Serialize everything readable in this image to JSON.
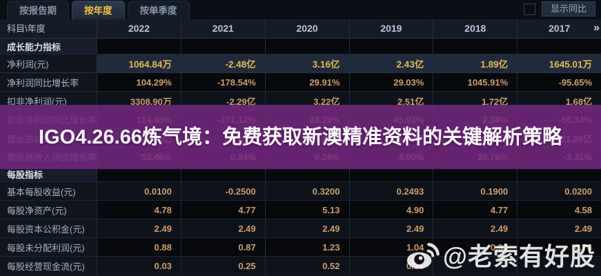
{
  "tabs": [
    {
      "label": "按报告期",
      "active": false
    },
    {
      "label": "按年度",
      "active": true
    },
    {
      "label": "按单季度",
      "active": false
    }
  ],
  "toolbar": {
    "yoy_label": "显示同比",
    "yoy_checked": false
  },
  "table": {
    "corner_label": "科目\\年度",
    "years": [
      "2022",
      "2021",
      "2020",
      "2019",
      "2018",
      "2017"
    ],
    "more_icon": "»",
    "rows": [
      {
        "type": "section",
        "label": "成长能力指标"
      },
      {
        "type": "data",
        "label": "净利润(元)",
        "highlight": true,
        "values": [
          "1064.84万",
          "-2.48亿",
          "3.16亿",
          "2.43亿",
          "1.89亿",
          "1645.01万"
        ]
      },
      {
        "type": "data",
        "label": "净利润同比增长率",
        "values": [
          "104.29%",
          "-178.54%",
          "29.91%",
          "29.03%",
          "1045.91%",
          "-95.65%"
        ]
      },
      {
        "type": "data",
        "label": "扣非净利润(元)",
        "values": [
          "3308.90万",
          "-2.29亿",
          "3.22亿",
          "2.51亿",
          "1.72亿",
          "1.68亿"
        ]
      },
      {
        "type": "data",
        "label": "扣非净利润同比增长率",
        "values": [
          "114.45%",
          "-171.12%",
          "28.29%",
          "45.93%",
          "2.38%",
          "-56.34%"
        ]
      },
      {
        "type": "data",
        "label": "营业总收入(元)",
        "values": [
          "41.43亿",
          "27.00亿",
          "26.77亿",
          "26.70亿",
          "25.68亿",
          "21.26亿"
        ]
      },
      {
        "type": "data",
        "label": "营业总收入同比增长率",
        "values": [
          "53.46%",
          "0.84%",
          "0.26%",
          "4.00%",
          "20.76%",
          "-2.31%"
        ]
      },
      {
        "type": "section",
        "label": "每股指标"
      },
      {
        "type": "data",
        "label": "基本每股收益(元)",
        "values": [
          "0.0100",
          "-0.2500",
          "0.3200",
          "0.2493",
          "0.1900",
          "0.0200"
        ]
      },
      {
        "type": "data",
        "label": "每股净资产(元)",
        "values": [
          "4.78",
          "4.77",
          "5.13",
          "4.90",
          "4.77",
          "4.58"
        ]
      },
      {
        "type": "data",
        "label": "每股资本公积金(元)",
        "values": [
          "2.49",
          "2.49",
          "2.49",
          "2.49",
          "2.49",
          "2.49"
        ]
      },
      {
        "type": "data",
        "label": "每股未分配利润(元)",
        "values": [
          "0.88",
          "0.87",
          "1.23",
          "1.04",
          "0.93",
          "0.76"
        ]
      },
      {
        "type": "data",
        "label": "每股经营现金流(元)",
        "values": [
          "0.03",
          "0.25",
          "0.52",
          "0.36",
          "",
          ""
        ]
      }
    ]
  },
  "watermark": {
    "text": "IGO4.26.66炼气境：免费获取新澳精准资料的关键解析策略"
  },
  "weibo": {
    "handle": "@老索有好股",
    "logo": "weibo-eye-icon"
  },
  "colors": {
    "accent_gold": "#e8bb4e",
    "value_orange": "#d09f6a",
    "tab_active_text": "#f3c13e",
    "watermark_purple": "#762882",
    "header_bg": "#151c28",
    "row_bg_dark": "#07090d"
  }
}
